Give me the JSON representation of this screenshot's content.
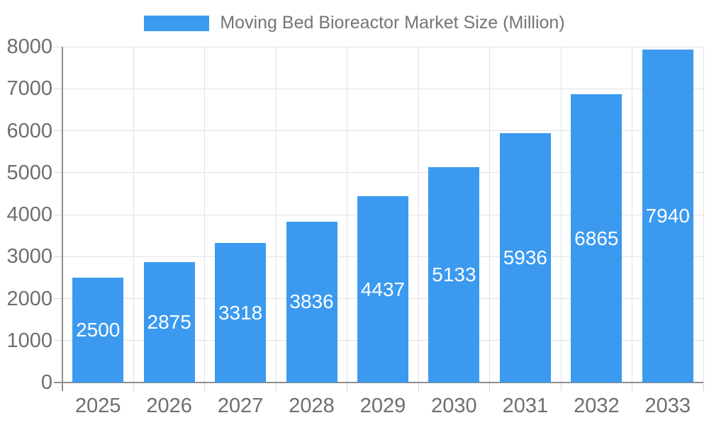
{
  "colors": {
    "bar": "#3B9AEF",
    "bar_label": "#FFFFFF",
    "axis": "#8E8E8E",
    "grid": "#E2E2E2",
    "tick_y": "#D6D6D6",
    "tick_x": "#C4C4C4",
    "tick_label": "#6E6E6E",
    "legend_text": "#757575",
    "background": "#FFFFFF"
  },
  "chart_data": {
    "type": "bar",
    "title": "Moving Bed Bioreactor Market Size (Million)",
    "series_name": "Moving Bed Bioreactor Market Size (Million)",
    "categories": [
      "2025",
      "2026",
      "2027",
      "2028",
      "2029",
      "2030",
      "2031",
      "2032",
      "2033"
    ],
    "values": [
      2500,
      2875,
      3318,
      3836,
      4437,
      5133,
      5936,
      6865,
      7940
    ],
    "xlabel": "",
    "ylabel": "",
    "ylim": [
      0,
      8000
    ],
    "y_ticks": [
      0,
      1000,
      2000,
      3000,
      4000,
      5000,
      6000,
      7000,
      8000
    ],
    "grid": true,
    "bar_value_labels_visible": true,
    "legend_position": "top-center"
  }
}
